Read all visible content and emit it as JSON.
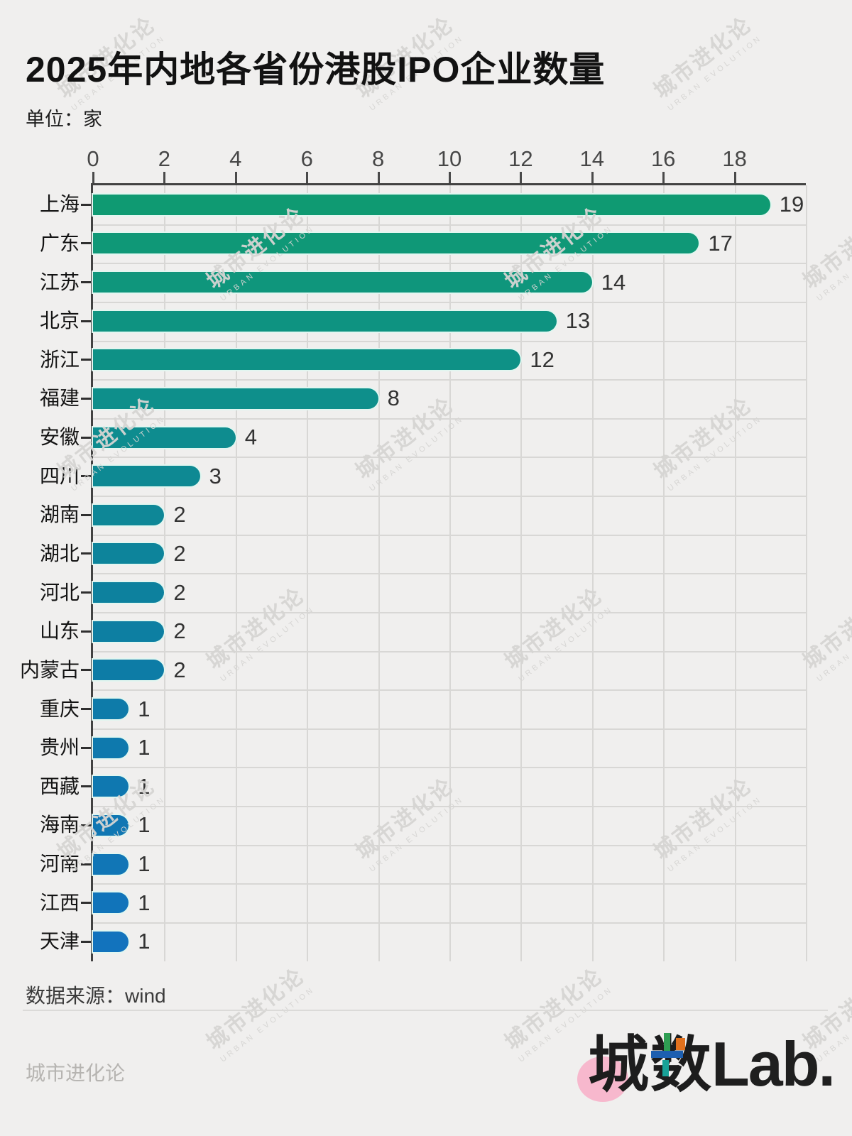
{
  "title": "2025年内地各省份港股IPO企业数量",
  "unit": "单位：家",
  "source": "数据来源：wind",
  "watermark": {
    "cn": "城市进化论",
    "en": "URBAN EVOLUTION"
  },
  "footer": {
    "brand": "城市进化论",
    "logo": {
      "cheng": "城",
      "shu": "数",
      "lab": "Lab."
    }
  },
  "colors": {
    "background": "#f0efee",
    "grid": "#d8d7d5",
    "axis": "#424242",
    "bar_outline": "#e2f6f0",
    "bar_gradient_stops": [
      [
        0.0,
        "#0F9A72"
      ],
      [
        0.26,
        "#0E8F8B"
      ],
      [
        0.63,
        "#0D7CA6"
      ],
      [
        1.0,
        "#1273BD"
      ]
    ],
    "logo_pink": "#f7b8cd",
    "logo_green": "#2f9e53",
    "logo_orange": "#e2711d",
    "logo_blue": "#1d5fb0",
    "logo_teal": "#18a197"
  },
  "chart_data": {
    "type": "bar",
    "orientation": "horizontal",
    "title": "2025年内地各省份港股IPO企业数量",
    "unit": "家",
    "source": "wind",
    "categories": [
      "上海",
      "广东",
      "江苏",
      "北京",
      "浙江",
      "福建",
      "安徽",
      "四川",
      "湖南",
      "湖北",
      "河北",
      "山东",
      "内蒙古",
      "重庆",
      "贵州",
      "西藏",
      "海南",
      "河南",
      "江西",
      "天津"
    ],
    "values": [
      19,
      17,
      14,
      13,
      12,
      8,
      4,
      3,
      2,
      2,
      2,
      2,
      2,
      1,
      1,
      1,
      1,
      1,
      1,
      1
    ],
    "x_ticks": [
      0,
      2,
      4,
      6,
      8,
      10,
      12,
      14,
      16,
      18
    ],
    "xlim": [
      0,
      20
    ],
    "grid": true,
    "value_labels": true,
    "legend": false
  }
}
